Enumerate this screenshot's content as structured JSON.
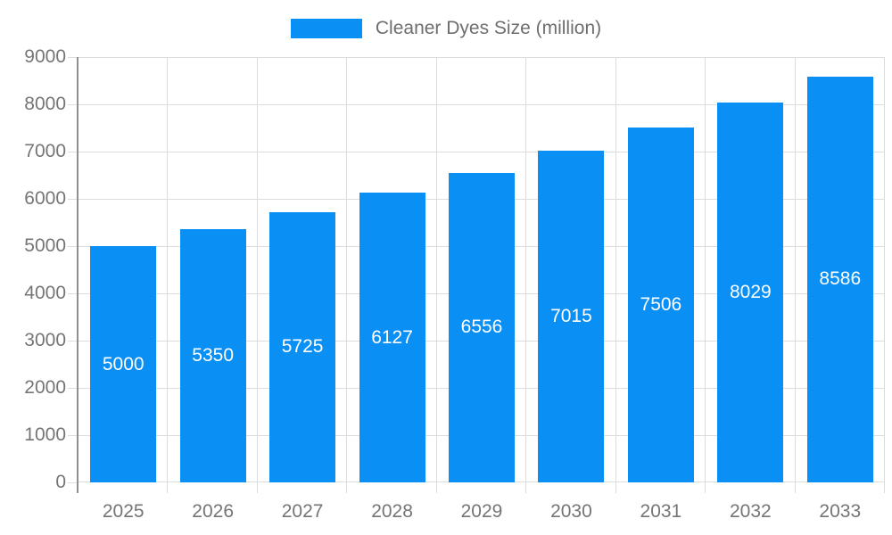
{
  "chart_data": {
    "type": "bar",
    "title": "Cleaner Dyes Size (million)",
    "categories": [
      "2025",
      "2026",
      "2027",
      "2028",
      "2029",
      "2030",
      "2031",
      "2032",
      "2033"
    ],
    "series": [
      {
        "name": "Cleaner Dyes Size (million)",
        "values": [
          5000,
          5350,
          5725,
          6127,
          6556,
          7015,
          7506,
          8029,
          8586
        ]
      }
    ],
    "xlabel": "",
    "ylabel": "",
    "ylim": [
      0,
      9000
    ],
    "y_tick_step": 1000,
    "grid": true,
    "legend_position": "top-center",
    "bar_value_labels": "inside-center",
    "colors": {
      "bar": "#0a8ff5",
      "grid": "#dcdcdc",
      "axis_line": "#8f8f8f",
      "axis_text": "#757575",
      "bar_label_text": "#ffffff",
      "legend_text": "#6e6e6e",
      "background": "#ffffff"
    }
  }
}
